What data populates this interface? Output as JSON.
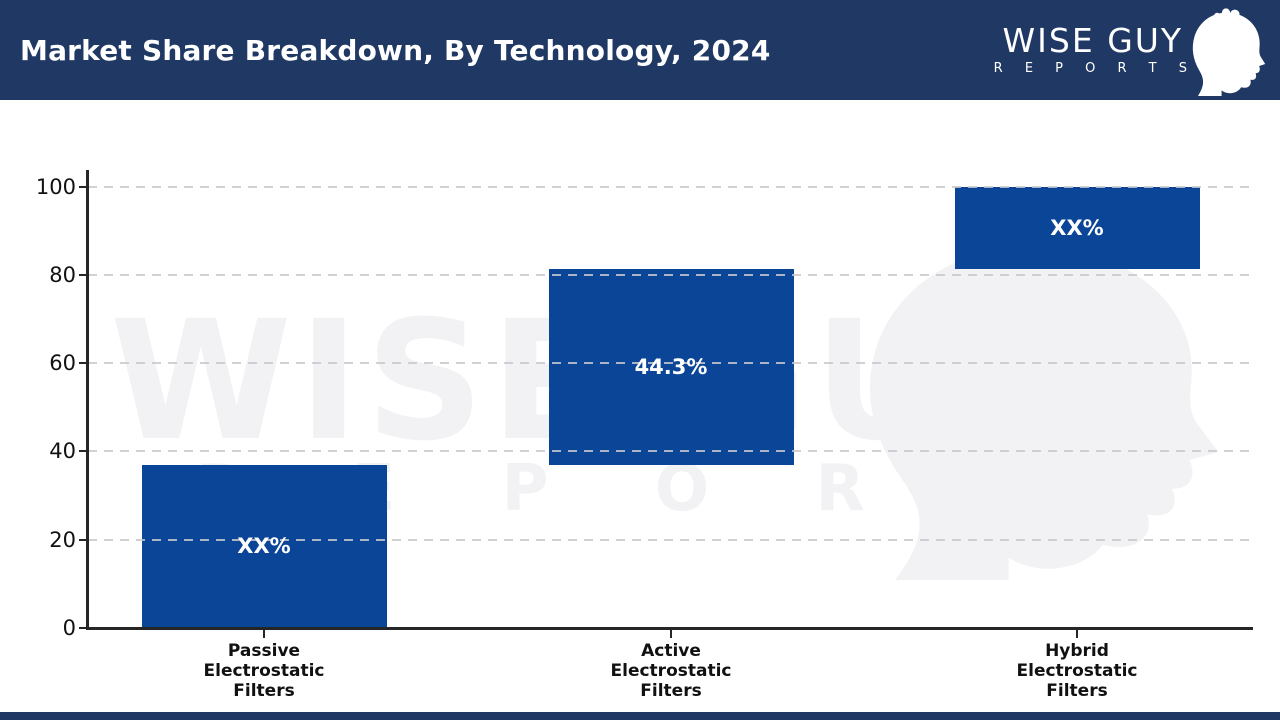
{
  "header": {
    "title": "Market Share Breakdown, By Technology, 2024",
    "bg_color": "#1f3864",
    "logo": {
      "wordmark": "WISE GUY",
      "subtext": "R E P O R T S"
    }
  },
  "watermark": {
    "wordmark": "WISE GUY",
    "subtext": "R E P O R T S"
  },
  "chart_data": {
    "type": "bar",
    "variant": "floating-waterfall-bars",
    "title": "Market Share Breakdown, By Technology, 2024",
    "xlabel": "",
    "ylabel": "",
    "categories": [
      [
        "Passive",
        "Electrostatic",
        "Filters"
      ],
      [
        "Active",
        "Electrostatic",
        "Filters"
      ],
      [
        "Hybrid",
        "Electrostatic",
        "Filters"
      ]
    ],
    "segments": [
      {
        "category": "Passive Electrostatic Filters",
        "start": 0,
        "end": 37,
        "label": "XX%"
      },
      {
        "category": "Active Electrostatic Filters",
        "start": 37,
        "end": 81.3,
        "label": "44.3%"
      },
      {
        "category": "Hybrid Electrostatic Filters",
        "start": 81.3,
        "end": 99.8,
        "label": "XX%"
      }
    ],
    "ylim": [
      0,
      100
    ],
    "yticks": [
      0,
      20,
      40,
      60,
      80,
      100
    ],
    "grid": "horizontal-dashed",
    "grid_over_bars": true,
    "bar_color": "#0a4597",
    "bar_label_color": "#ffffff",
    "axis_color": "#262626",
    "legend": "none"
  }
}
